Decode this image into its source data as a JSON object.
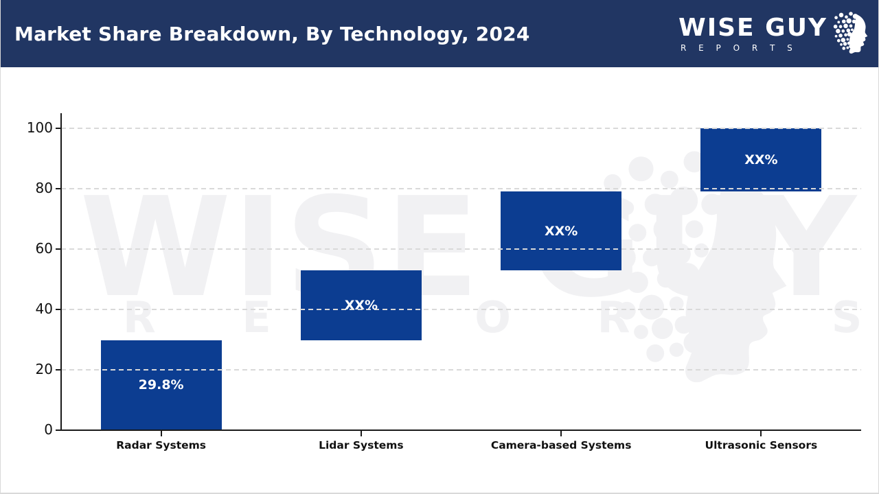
{
  "header": {
    "title": "Market Share Breakdown, By Technology, 2024",
    "bg_color": "#213663",
    "logo": {
      "name": "Wise Guy Reports logo",
      "line1": "WISE GUY",
      "line2": "R E P O R T S"
    }
  },
  "watermark": {
    "line1": "WISE GUY",
    "line2": "R E P O R T S"
  },
  "chart_data": {
    "type": "bar",
    "subtype": "waterfall (floating stacked segments)",
    "title": "Market Share Breakdown, By Technology, 2024",
    "categories": [
      "Radar Systems",
      "Lidar Systems",
      "Camera-based Systems",
      "Ultrasonic Sensors"
    ],
    "series": [
      {
        "name": "Market share (%)",
        "starts": [
          0,
          29.8,
          53,
          79
        ],
        "ends": [
          29.8,
          53,
          79,
          100
        ]
      }
    ],
    "bar_labels": [
      "29.8%",
      "XX%",
      "XX%",
      "XX%"
    ],
    "xlabel": "",
    "ylabel": "",
    "ylim": [
      0,
      105
    ],
    "yticks": [
      0,
      20,
      40,
      60,
      80,
      100
    ],
    "grid": "horizontal dashed lines, drawn over bars",
    "legend": "none",
    "colors": {
      "bar": "#0c3d91",
      "bar_label": "#ffffff",
      "header_bg": "#213663",
      "grid": "#d9d9d9",
      "axis": "#1a1a1a",
      "watermark": "#f1f1f3"
    }
  }
}
